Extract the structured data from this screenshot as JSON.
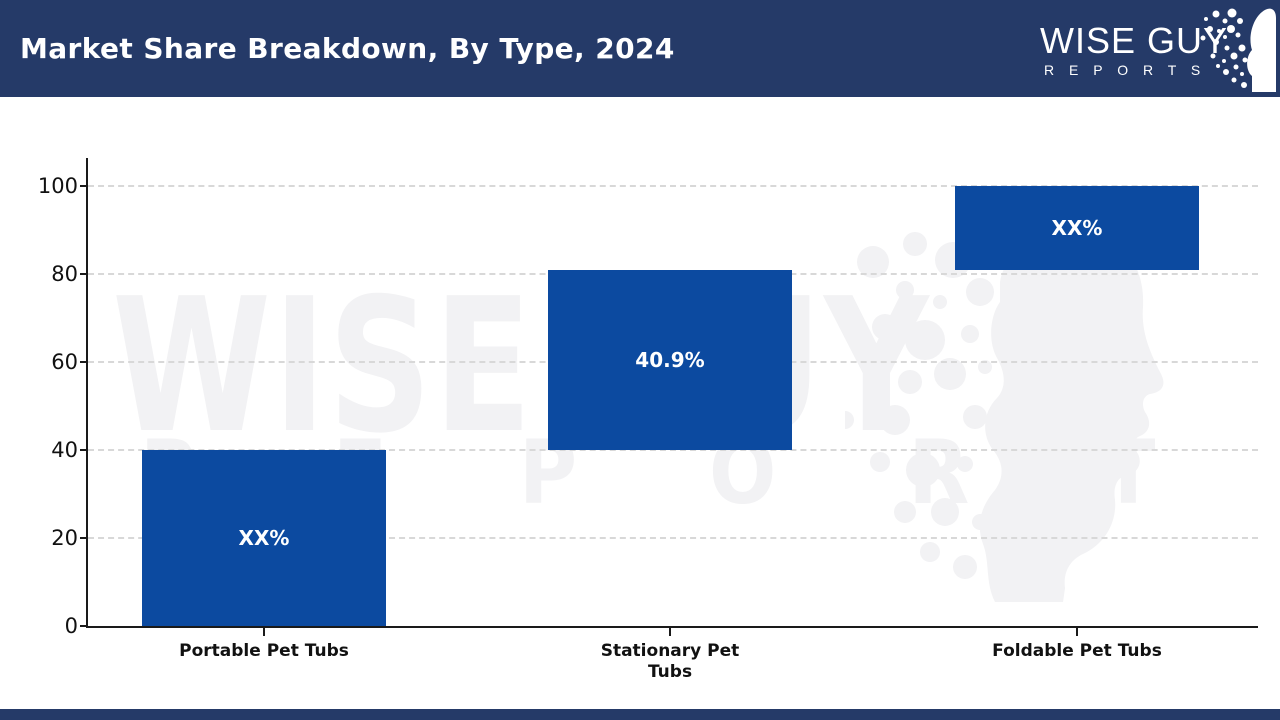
{
  "header": {
    "title": "Market Share Breakdown, By Type, 2024",
    "logo": {
      "brand_line1": "WISE GUY",
      "brand_line2": "R E P O R T S"
    }
  },
  "watermark": {
    "line1": "WISE GUY",
    "line2": "R E P O R T S"
  },
  "chart_data": {
    "type": "bar",
    "subtype": "waterfall",
    "title": "Market Share Breakdown, By Type, 2024",
    "categories": [
      "Portable Pet Tubs",
      "Stationary Pet Tubs",
      "Foldable Pet Tubs"
    ],
    "category_label_lines": [
      [
        "Portable Pet Tubs"
      ],
      [
        "Stationary Pet",
        "Tubs"
      ],
      [
        "Foldable Pet Tubs"
      ]
    ],
    "bars": [
      {
        "category": "Portable Pet Tubs",
        "label": "XX%",
        "start": 0,
        "end": 40
      },
      {
        "category": "Stationary Pet Tubs",
        "label": "40.9%",
        "start": 40,
        "end": 80.9
      },
      {
        "category": "Foldable Pet Tubs",
        "label": "XX%",
        "start": 80.9,
        "end": 100
      }
    ],
    "y_ticks": [
      "0",
      "20",
      "40",
      "60",
      "80",
      "100"
    ],
    "ylim": [
      0,
      100
    ],
    "xlabel": "",
    "ylabel": "",
    "legend": "none",
    "grid": "horizontal-dashed",
    "colors": {
      "bar": "#0c4aa0",
      "header_bg": "#253a68",
      "grid": "#d8d8d8",
      "axis": "#1a1a1a",
      "bar_label": "#ffffff",
      "tick_label": "#111111",
      "watermark": "#f2f2f4"
    }
  }
}
